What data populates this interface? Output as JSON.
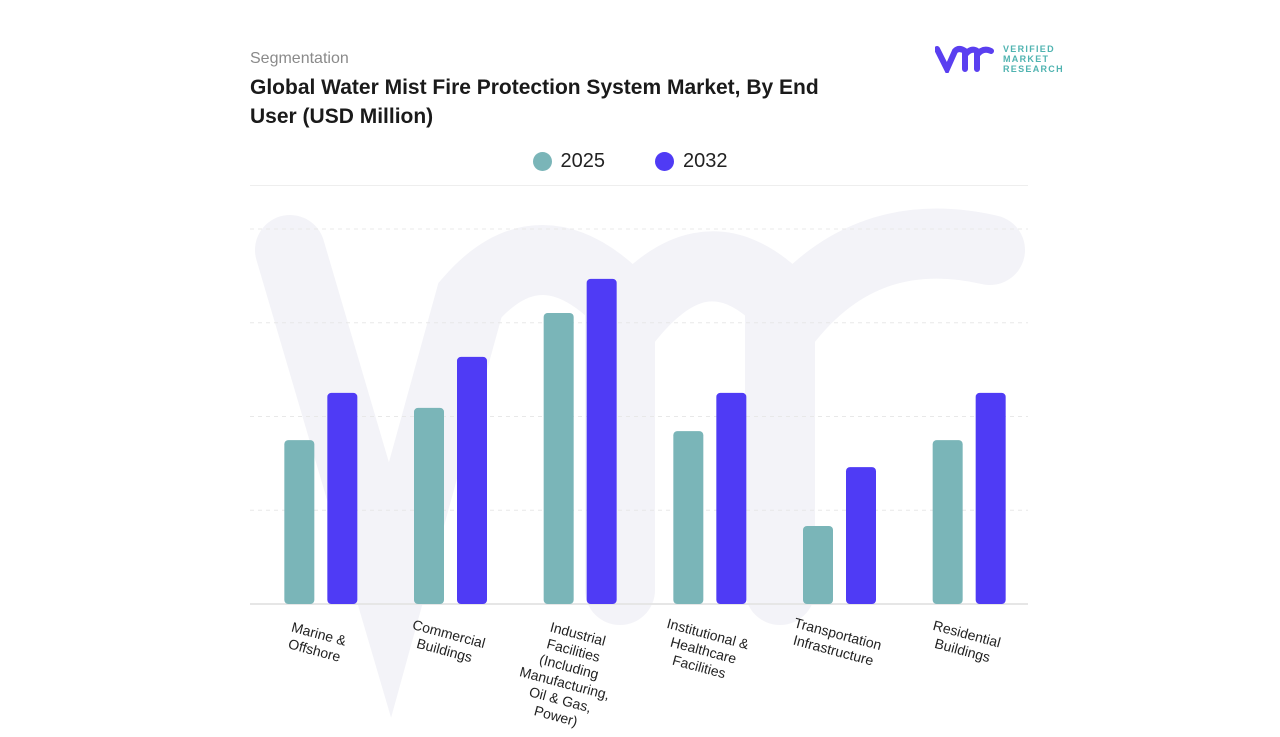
{
  "header": {
    "segment_label": "Segmentation",
    "title": "Global Water Mist Fire Protection System Market, By End User (USD Million)"
  },
  "logo": {
    "text_lines": [
      "VERIFIED",
      "MARKET",
      "RESEARCH"
    ],
    "mark": "vmr"
  },
  "chart_data": {
    "type": "bar",
    "title": "Global Water Mist Fire Protection System Market, By End User (USD Million)",
    "xlabel": "",
    "ylabel": "",
    "ylim": [
      0,
      100
    ],
    "grid": true,
    "legend_placement": "top",
    "categories": [
      "Marine & Offshore",
      "Commercial Buildings",
      "Industrial Facilities (Including Manufacturing, Oil & Gas, Power)",
      "Institutional & Healthcare Facilities",
      "Transportation Infrastructure",
      "Residential Buildings"
    ],
    "series": [
      {
        "name": "2025",
        "color": "#7ab5b8",
        "values": [
          43.7,
          52.3,
          77.6,
          46.1,
          20.8,
          43.7
        ]
      },
      {
        "name": "2032",
        "color": "#4f3bf5",
        "values": [
          56.3,
          65.9,
          86.7,
          56.3,
          36.5,
          56.3
        ]
      }
    ]
  }
}
